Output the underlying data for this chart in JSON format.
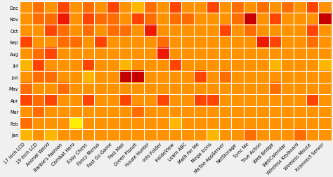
{
  "rows": [
    "Jan",
    "Feb",
    "Mar",
    "Apr",
    "May",
    "Jun",
    "Jul",
    "Aug",
    "Sep",
    "Oct",
    "Nov",
    "Dec"
  ],
  "cols": [
    "17 Inch LCD",
    "19 Inch LCD",
    "Animal World",
    "Barbie's Fashion",
    "Combat Hero",
    "Easy Chess",
    "Fancy Menus",
    "Fast Go Game",
    "Fast Mail",
    "Green Planet",
    "House Hunter",
    "Info Folder",
    "InsideView",
    "Learn ABC",
    "Math for Me",
    "Mega Icons",
    "MeToo AppServer",
    "NetStorage",
    "Sync Me",
    "True Action",
    "Web Bridge",
    "WebCalendar",
    "Wireless Keyboard",
    "Wireless Mouse",
    "Xconnect Server"
  ],
  "background": "#f0f0f0",
  "values": [
    [
      4,
      5,
      4,
      5,
      5,
      5,
      5,
      5,
      5,
      5,
      5,
      5,
      5,
      5,
      5,
      4,
      5,
      5,
      6,
      5,
      5,
      5,
      6,
      5,
      5
    ],
    [
      6,
      5,
      5,
      5,
      2,
      5,
      5,
      5,
      5,
      5,
      5,
      5,
      4,
      5,
      5,
      5,
      5,
      5,
      5,
      5,
      5,
      5,
      5,
      5,
      5
    ],
    [
      5,
      6,
      5,
      5,
      5,
      5,
      5,
      5,
      5,
      6,
      5,
      5,
      5,
      5,
      5,
      5,
      5,
      5,
      5,
      5,
      5,
      5,
      5,
      5,
      5
    ],
    [
      7,
      6,
      7,
      5,
      5,
      7,
      5,
      5,
      7,
      5,
      5,
      7,
      5,
      5,
      7,
      7,
      5,
      5,
      5,
      5,
      5,
      5,
      5,
      7,
      5
    ],
    [
      6,
      5,
      5,
      6,
      5,
      5,
      5,
      5,
      5,
      5,
      5,
      5,
      5,
      5,
      5,
      5,
      5,
      5,
      5,
      5,
      6,
      5,
      5,
      5,
      5
    ],
    [
      5,
      6,
      6,
      5,
      5,
      4,
      5,
      5,
      9,
      9,
      5,
      5,
      5,
      5,
      7,
      5,
      6,
      5,
      5,
      5,
      5,
      5,
      5,
      5,
      5
    ],
    [
      4,
      7,
      5,
      5,
      5,
      7,
      5,
      5,
      4,
      5,
      5,
      5,
      7,
      5,
      5,
      5,
      5,
      5,
      5,
      5,
      4,
      5,
      5,
      5,
      4
    ],
    [
      5,
      6,
      7,
      5,
      5,
      5,
      5,
      5,
      5,
      5,
      5,
      8,
      5,
      5,
      5,
      5,
      5,
      5,
      5,
      5,
      5,
      5,
      5,
      5,
      5
    ],
    [
      7,
      5,
      5,
      6,
      6,
      5,
      7,
      5,
      5,
      5,
      5,
      6,
      5,
      5,
      5,
      5,
      5,
      5,
      5,
      8,
      7,
      5,
      5,
      6,
      5
    ],
    [
      5,
      5,
      7,
      6,
      5,
      6,
      5,
      6,
      6,
      5,
      8,
      5,
      5,
      5,
      5,
      5,
      7,
      5,
      6,
      5,
      5,
      5,
      5,
      7,
      5
    ],
    [
      5,
      6,
      6,
      8,
      5,
      7,
      6,
      6,
      5,
      7,
      6,
      5,
      6,
      6,
      5,
      5,
      5,
      6,
      9,
      5,
      7,
      5,
      5,
      5,
      9
    ],
    [
      5,
      6,
      5,
      7,
      5,
      6,
      5,
      7,
      5,
      4,
      6,
      5,
      7,
      5,
      5,
      7,
      5,
      6,
      5,
      6,
      5,
      6,
      5,
      7,
      5
    ]
  ],
  "vmin": 2,
  "vmax": 9.5,
  "figsize": [
    4.74,
    2.53
  ],
  "dpi": 100,
  "tick_fontsize": 4.8,
  "xlabel_rotation": 45
}
